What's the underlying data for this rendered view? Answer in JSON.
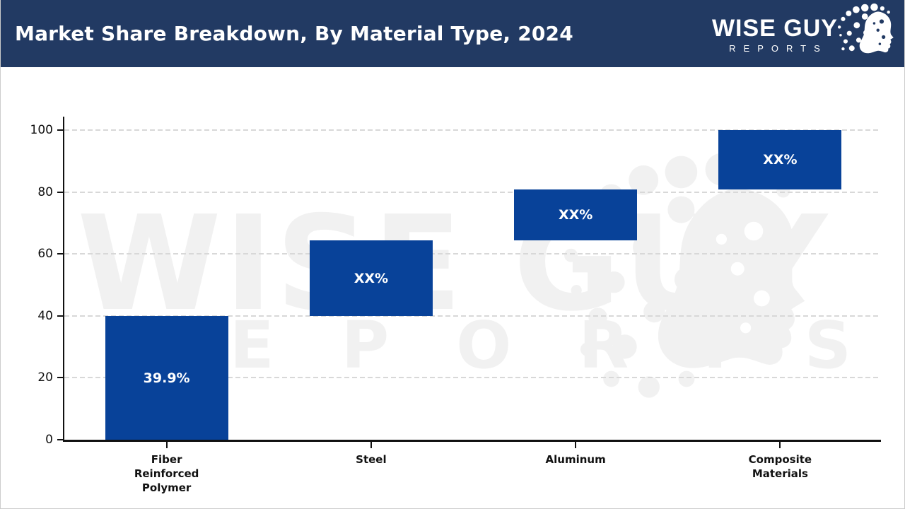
{
  "header": {
    "title": "Market Share Breakdown, By Material Type, 2024",
    "bg_color": "#223a63",
    "logo": {
      "wordmark": "WISE GUY",
      "subtitle": "REPORTS"
    }
  },
  "watermark": {
    "wordmark": "WISE GUY",
    "subtitle": "REPORTS"
  },
  "chart_data": {
    "type": "bar",
    "subtype": "floating-waterfall",
    "title": "Market Share Breakdown, By Material Type, 2024",
    "categories": [
      "Fiber Reinforced Polymer",
      "Steel",
      "Aluminum",
      "Composite Materials"
    ],
    "series": [
      {
        "name": "Market share (%)",
        "segments": [
          {
            "category": "Fiber Reinforced Polymer",
            "start": 0,
            "end": 39.9,
            "label": "39.9%"
          },
          {
            "category": "Steel",
            "start": 39.9,
            "end": 64.4,
            "label": "XX%"
          },
          {
            "category": "Aluminum",
            "start": 64.4,
            "end": 80.9,
            "label": "XX%"
          },
          {
            "category": "Composite Materials",
            "start": 80.9,
            "end": 100,
            "label": "XX%"
          }
        ]
      }
    ],
    "xlabel": "",
    "ylabel": "",
    "ylim": [
      0,
      105
    ],
    "yticks": [
      0,
      20,
      40,
      60,
      80,
      100
    ],
    "grid": "horizontal-dashed",
    "legend": "none",
    "bar_color": "#084299",
    "bar_label_color": "#ffffff"
  }
}
